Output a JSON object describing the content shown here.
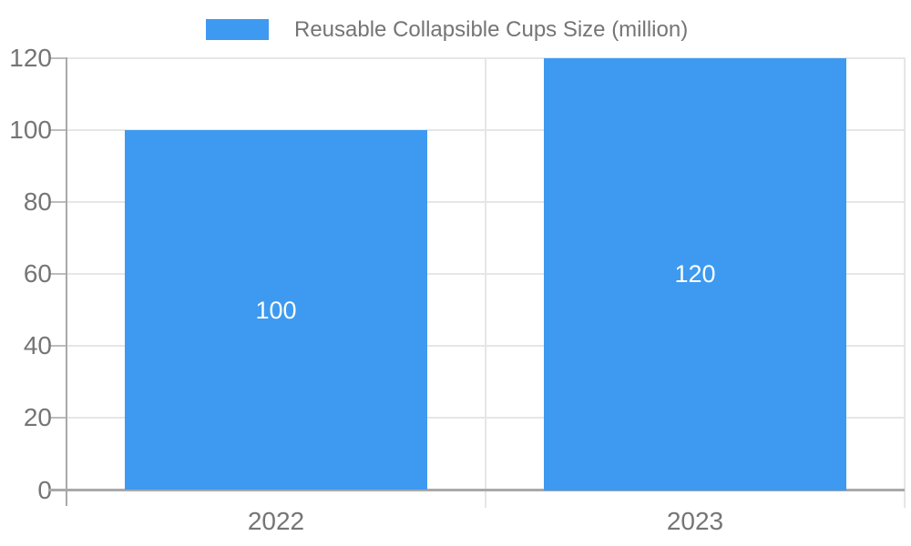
{
  "legend": {
    "label": "Reusable Collapsible Cups Size (million)"
  },
  "chart_data": {
    "type": "bar",
    "title": "Reusable Collapsible Cups Size (million)",
    "categories": [
      "2022",
      "2023"
    ],
    "series": [
      {
        "name": "Reusable Collapsible Cups Size (million)",
        "values": [
          100,
          120
        ]
      }
    ],
    "data_labels": [
      "100",
      "120"
    ],
    "xlabel": "",
    "ylabel": "",
    "ylim": [
      0,
      120
    ],
    "yticks": [
      0,
      20,
      40,
      60,
      80,
      100,
      120
    ],
    "grid": true,
    "legend_position": "top",
    "colors": {
      "bar": "#3d9af0",
      "gridline": "#e6e6e6",
      "category_divider": "#e6e6e6",
      "axis_line": "#a9a9a9",
      "tick_mark": "#bdbdbd",
      "axis_text": "#757575",
      "legend_text": "#757575",
      "data_label_text": "#ffffff",
      "background": "#ffffff"
    }
  }
}
